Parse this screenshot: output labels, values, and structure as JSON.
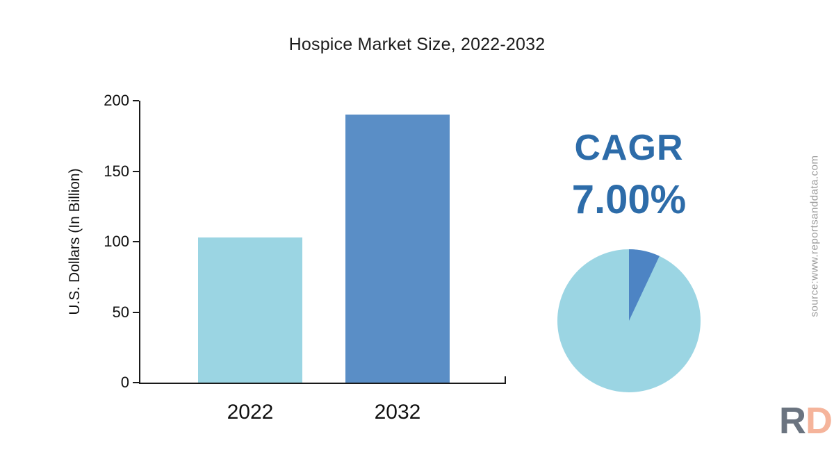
{
  "title": "Hospice Market Size, 2022-2032",
  "cagr": {
    "label": "CAGR",
    "value": "7.00%"
  },
  "source_note": "source:www.reportsanddata.com",
  "logo": {
    "letter_r": "R",
    "letter_d": "D"
  },
  "colors": {
    "bar_2022": "#9bd5e3",
    "bar_2032": "#5a8ec6",
    "pie_slice": "#4d84c4",
    "pie_body": "#9bd5e3",
    "cagr_text": "#2d6ca9",
    "axis": "#1a1a1a",
    "source_text": "#9b9b9b",
    "logo_r": "#6b7480",
    "logo_d": "#f5b49b"
  },
  "chart_data": [
    {
      "type": "bar",
      "title": "Hospice Market Size, 2022-2032",
      "categories": [
        "2022",
        "2032"
      ],
      "values": [
        103,
        190
      ],
      "bar_colors": [
        "#9bd5e3",
        "#5a8ec6"
      ],
      "xlabel": "",
      "ylabel": "U.S. Dollars (In Billion)",
      "yticks": [
        0,
        50,
        100,
        150,
        200
      ],
      "ylim": [
        0,
        200
      ],
      "grid": false,
      "legend": "none"
    },
    {
      "type": "pie",
      "labels": [
        "CAGR 7.00%",
        "remainder"
      ],
      "values": [
        7,
        93
      ],
      "slice_colors": [
        "#4d84c4",
        "#9bd5e3"
      ],
      "start_angle_deg": 0,
      "direction": "clockwise",
      "annotation": "CAGR 7.00%"
    }
  ]
}
